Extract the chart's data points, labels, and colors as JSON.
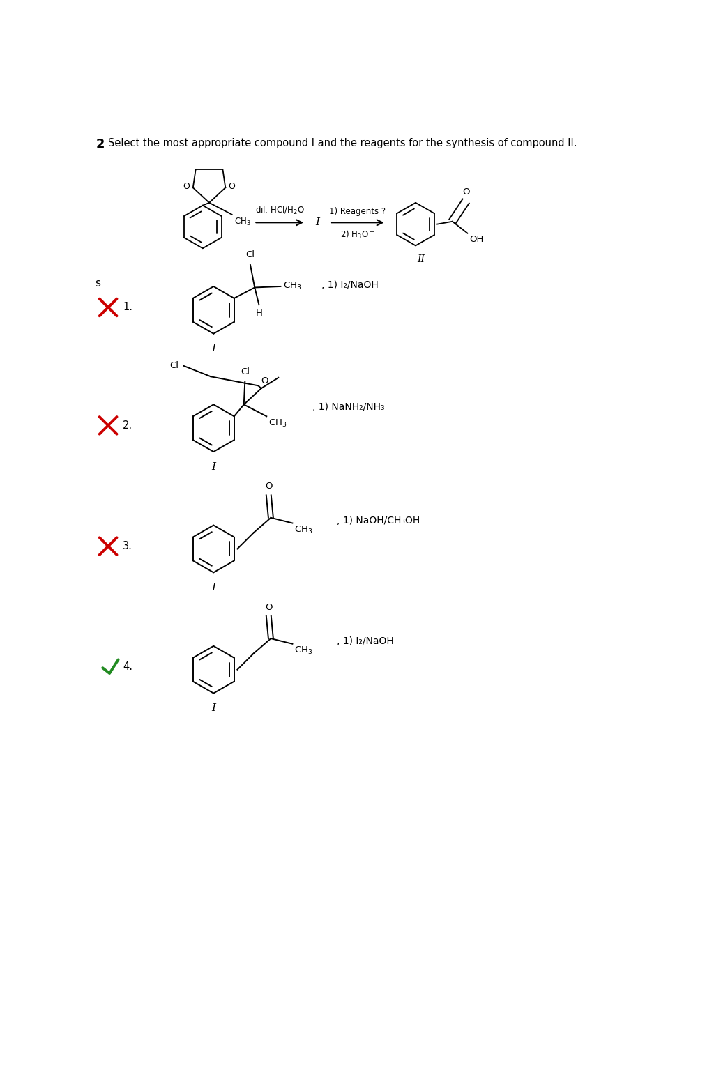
{
  "title_number": "2",
  "title_text": "Select the most appropriate compound I and the reagents for the synthesis of compound II.",
  "background_color": "#ffffff",
  "text_color": "#000000",
  "answer_correct": 4,
  "options": [
    {
      "number": 1,
      "correct": false,
      "reagent": ", 1) I₂/NaOH"
    },
    {
      "number": 2,
      "correct": false,
      "reagent": ", 1) NaNH₂/NH₃"
    },
    {
      "number": 3,
      "correct": false,
      "reagent": ", 1) NaOH/CH₃OH"
    },
    {
      "number": 4,
      "correct": true,
      "reagent": ", 1) I₂/NaOH"
    }
  ],
  "reaction_header": {
    "reagent1": "dil. HCl/H₂O",
    "reagent2_line1": "1) Reagents ?",
    "reagent2_line2": "2) H₃O⁺",
    "intermediate": "I",
    "product_label": "II"
  }
}
